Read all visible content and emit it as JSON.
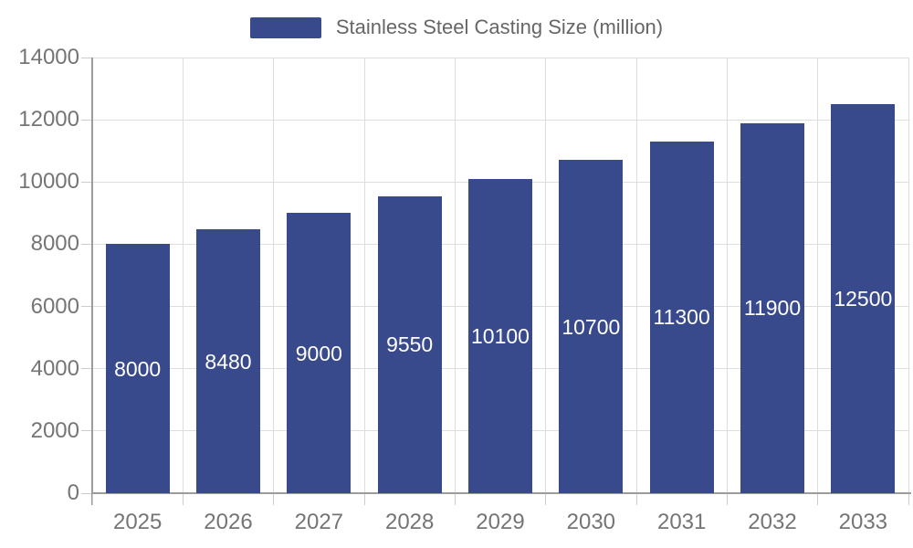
{
  "legend": {
    "label": "Stainless Steel Casting Size (million)"
  },
  "chart_data": {
    "type": "bar",
    "title": "Stainless Steel Casting Size (million)",
    "categories": [
      "2025",
      "2026",
      "2027",
      "2028",
      "2029",
      "2030",
      "2031",
      "2032",
      "2033"
    ],
    "values": [
      8000,
      8480,
      9000,
      9550,
      10100,
      10700,
      11300,
      11900,
      12500
    ],
    "data_labels": [
      "8000",
      "8480",
      "9000",
      "9550",
      "10100",
      "10700",
      "11300",
      "11900",
      "12500"
    ],
    "series_name": "Stainless Steel Casting Size (million)",
    "xlabel": "",
    "ylabel": "",
    "ylim": [
      0,
      14000
    ],
    "yticks": [
      0,
      2000,
      4000,
      6000,
      8000,
      10000,
      12000,
      14000
    ],
    "grid": true,
    "legend_position": "top",
    "colors": {
      "bar": "#394a8c",
      "bar_label": "#ffffff",
      "axis_text": "#757575",
      "legend_text": "#666666",
      "grid": "#dedede",
      "axis_line": "#9c9c9c",
      "tick": "#cccccc"
    }
  }
}
